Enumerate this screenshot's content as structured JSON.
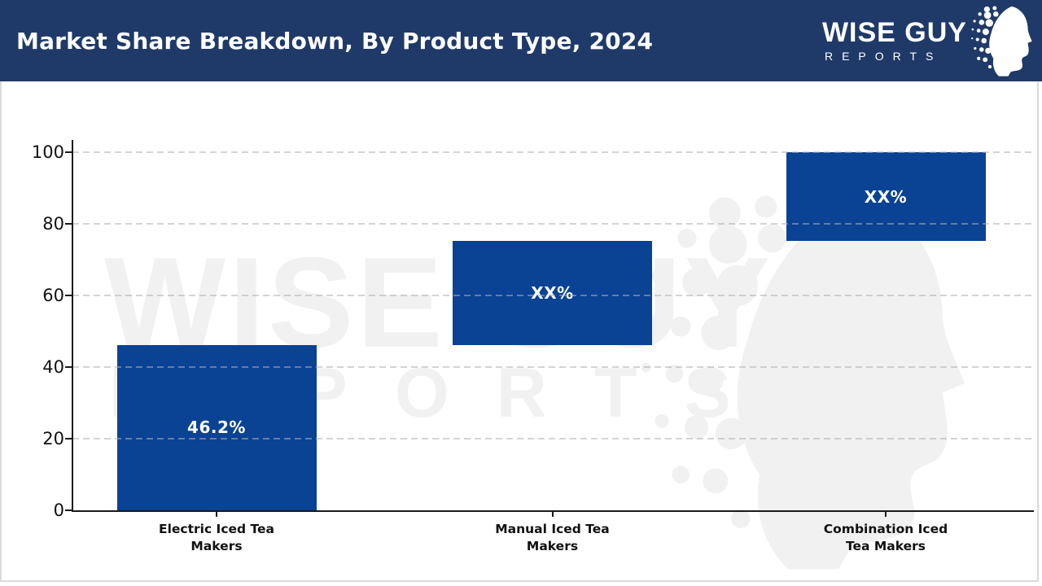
{
  "header": {
    "title": "Market Share Breakdown, By Product Type, 2024",
    "logo": {
      "line1": "WISE GUY",
      "line2": "REPORTS"
    }
  },
  "watermark": {
    "line1": "WISE GUY",
    "line2": "REPORTS"
  },
  "colors": {
    "header_bg": "#1f3a68",
    "bar": "#0a4294",
    "axis": "#1a1a1a",
    "gridline": "#c8c8c8",
    "watermark": "#f1f1f1",
    "frame_border": "#dbdbdb",
    "bar_label": "#ffffff"
  },
  "chart_data": {
    "type": "bar",
    "subtype": "floating-segment stacked breakdown (waterfall style)",
    "title": "Market Share Breakdown, By Product Type, 2024",
    "categories": [
      {
        "label": "Electric Iced Tea Makers",
        "line1": "Electric Iced Tea",
        "line2": "Makers"
      },
      {
        "label": "Manual Iced Tea Makers",
        "line1": "Manual Iced Tea",
        "line2": "Makers"
      },
      {
        "label": "Combination Iced Tea Makers",
        "line1": "Combination Iced",
        "line2": "Tea Makers"
      }
    ],
    "segments": [
      {
        "category": "Electric Iced Tea Makers",
        "label": "46.2%",
        "start": 0,
        "end": 46.2
      },
      {
        "category": "Manual Iced Tea Makers",
        "label": "XX%",
        "start": 46.2,
        "end": 75.2
      },
      {
        "category": "Combination Iced Tea Makers",
        "label": "XX%",
        "start": 75.2,
        "end": 100
      }
    ],
    "xlabel": "",
    "ylabel": "",
    "yticks": [
      0,
      20,
      40,
      60,
      80,
      100
    ],
    "ylim": [
      0,
      103
    ],
    "grid": "horizontal dashed, drawn over bars",
    "legend": "none"
  }
}
